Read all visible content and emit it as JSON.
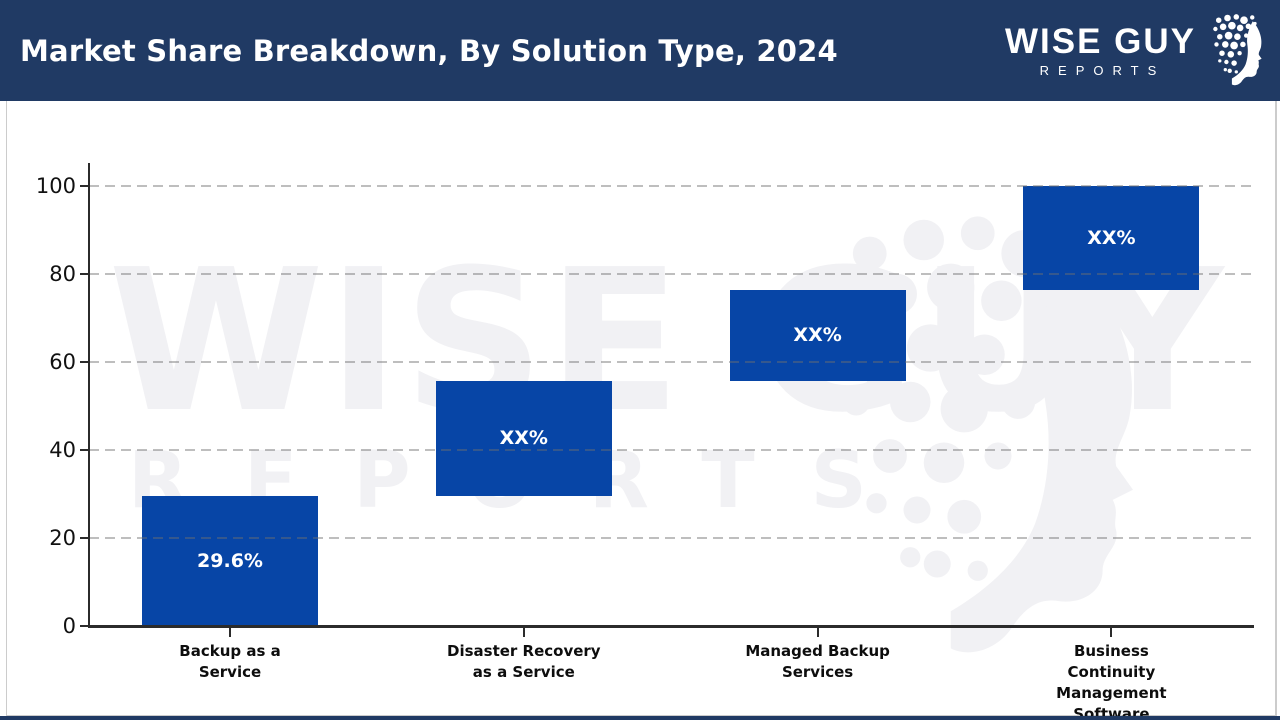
{
  "header": {
    "title": "Market Share Breakdown, By Solution Type, 2024",
    "logo": {
      "name": "WISE GUY",
      "sub": "REPORTS"
    }
  },
  "watermark": {
    "name": "WISE GUY",
    "sub": "REPORTS"
  },
  "colors": {
    "header_bg": "#203A64",
    "bar": "#0745A6",
    "bar_label": "#FFFFFF",
    "axis": "#2B2B2B",
    "watermark": "#F1F1F4",
    "panel_border": "#CCCCCC"
  },
  "chart_data": {
    "type": "bar",
    "subtype": "waterfall",
    "title": "Market Share Breakdown, By Solution Type, 2024",
    "categories": [
      "Backup as a\nService",
      "Disaster Recovery\nas a Service",
      "Managed Backup\nServices",
      "Business\nContinuity\nManagement\nSoftware"
    ],
    "segments": [
      {
        "category": "Backup as a Service",
        "start": 0,
        "end": 29.6,
        "label": "29.6%"
      },
      {
        "category": "Disaster Recovery as a Service",
        "start": 29.6,
        "end": 55.7,
        "label": "XX%"
      },
      {
        "category": "Managed Backup Services",
        "start": 55.7,
        "end": 76.4,
        "label": "XX%"
      },
      {
        "category": "Business Continuity Management Software",
        "start": 76.4,
        "end": 100,
        "label": "XX%"
      }
    ],
    "y_ticks": [
      0,
      20,
      40,
      60,
      80,
      100
    ],
    "ylim": [
      0,
      105
    ],
    "xlabel": "",
    "ylabel": "",
    "grid": "horizontal-dashed",
    "legend": "none"
  }
}
